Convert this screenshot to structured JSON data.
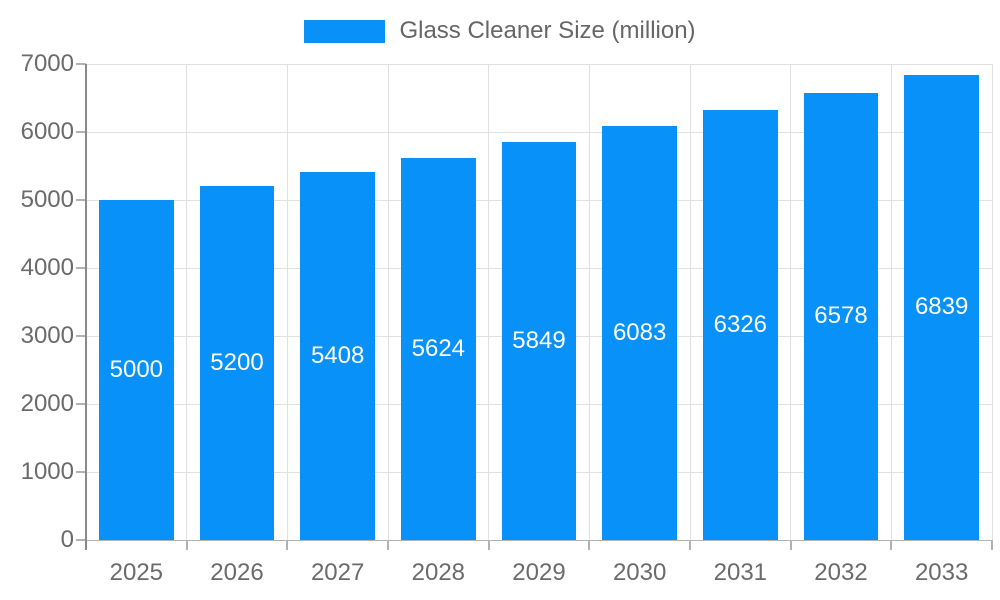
{
  "chart_data": {
    "type": "bar",
    "title": "Glass Cleaner Size (million)",
    "legend": {
      "label": "Glass Cleaner Size (million)",
      "position": "top"
    },
    "categories": [
      "2025",
      "2026",
      "2027",
      "2028",
      "2029",
      "2030",
      "2031",
      "2032",
      "2033"
    ],
    "values": [
      5000,
      5200,
      5408,
      5624,
      5849,
      6083,
      6326,
      6578,
      6839
    ],
    "value_labels": [
      "5000",
      "5200",
      "5408",
      "5624",
      "5849",
      "6083",
      "6326",
      "6578",
      "6839"
    ],
    "xlabel": "",
    "ylabel": "",
    "ylim": [
      0,
      7000
    ],
    "yticks": [
      "0",
      "1000",
      "2000",
      "3000",
      "4000",
      "5000",
      "6000",
      "7000"
    ],
    "grid": true,
    "colors": {
      "bar": "#0891F9",
      "grid": "#e1e1e1",
      "zero_line": "#b3b3b3",
      "axis": "#8a8a8a",
      "tick": "#b3b3b3",
      "axis_label": "#6b6b6b",
      "value_label": "#ffffff",
      "legend_text": "#666666"
    }
  }
}
